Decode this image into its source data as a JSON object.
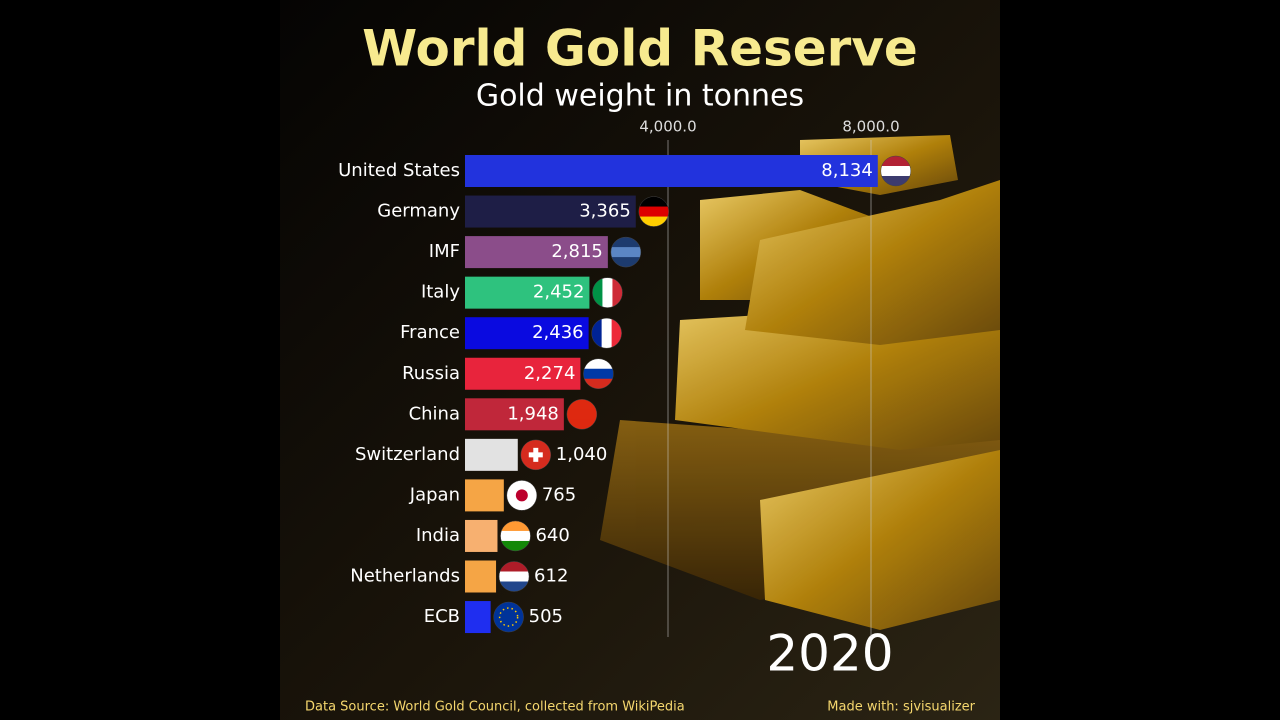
{
  "chart_data": {
    "type": "bar",
    "orientation": "horizontal",
    "title": "World Gold Reserve",
    "subtitle": "Gold weight in tonnes",
    "categories": [
      "United States",
      "Germany",
      "IMF",
      "Italy",
      "France",
      "Russia",
      "China",
      "Switzerland",
      "Japan",
      "India",
      "Netherlands",
      "ECB"
    ],
    "values": [
      8134,
      3365,
      2815,
      2452,
      2436,
      2274,
      1948,
      1040,
      765,
      640,
      612,
      505
    ],
    "value_labels": [
      "8,134",
      "3,365",
      "2,815",
      "2,452",
      "2,436",
      "2,274",
      "1,948",
      "1,040",
      "765",
      "640",
      "612",
      "505"
    ],
    "colors": [
      "#2233dd",
      "#1e1e46",
      "#8b4d8a",
      "#2ec27e",
      "#0a0ae0",
      "#e8243c",
      "#c0273a",
      "#e2e2e2",
      "#f5a545",
      "#f7b070",
      "#f5a545",
      "#1f2ef0"
    ],
    "xlim": [
      0,
      10000
    ],
    "xticks": [
      {
        "value": 4000,
        "label": "4,000.0"
      },
      {
        "value": 8000,
        "label": "8,000.0"
      }
    ],
    "grid": true,
    "annotation": "2020",
    "source": "Data Source: World Gold Council, collected from WikiPedia",
    "credit": "Made with: sjvisualizer"
  }
}
